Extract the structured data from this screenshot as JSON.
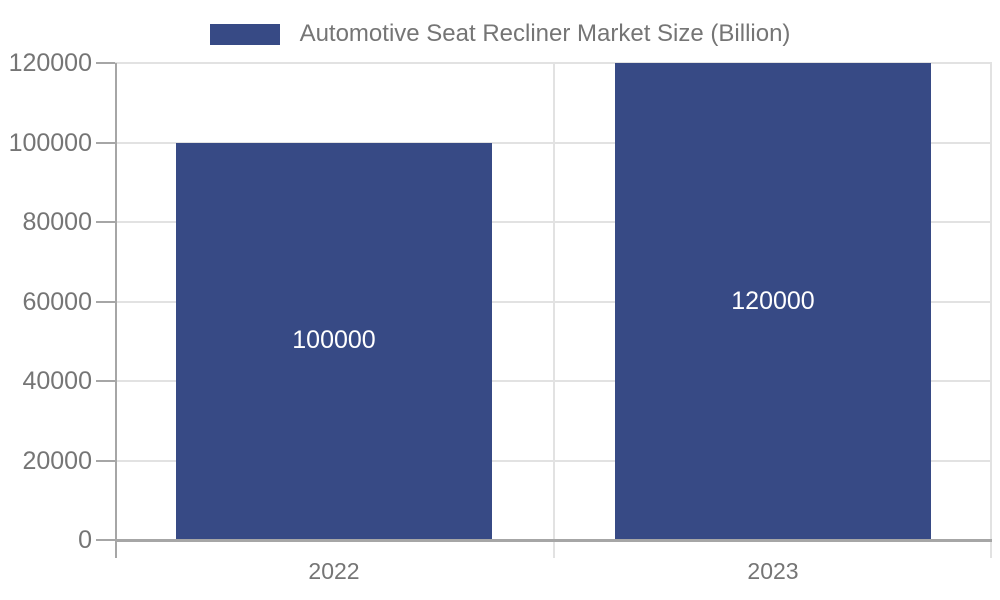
{
  "chart_data": {
    "type": "bar",
    "title": "Automotive Seat Recliner Market Size (Billion)",
    "categories": [
      "2022",
      "2023"
    ],
    "values": [
      100000,
      120000
    ],
    "bar_value_labels": [
      "100000",
      "120000"
    ],
    "xlabel": "",
    "ylabel": "",
    "ylim": [
      0,
      120000
    ],
    "ytick_step": 20000,
    "ytick_labels": [
      "0",
      "20000",
      "40000",
      "60000",
      "80000",
      "100000",
      "120000"
    ],
    "grid": true,
    "legend_position": "top-center",
    "legend_entries": [
      "Automotive Seat Recliner Market Size (Billion)"
    ],
    "colors": {
      "bar_fill": "#374A85",
      "bar_label_text": "#FFFFFF",
      "axis_text": "#757575",
      "grid_line": "#E2E2E2",
      "axis_line": "#A6A6A6"
    }
  }
}
